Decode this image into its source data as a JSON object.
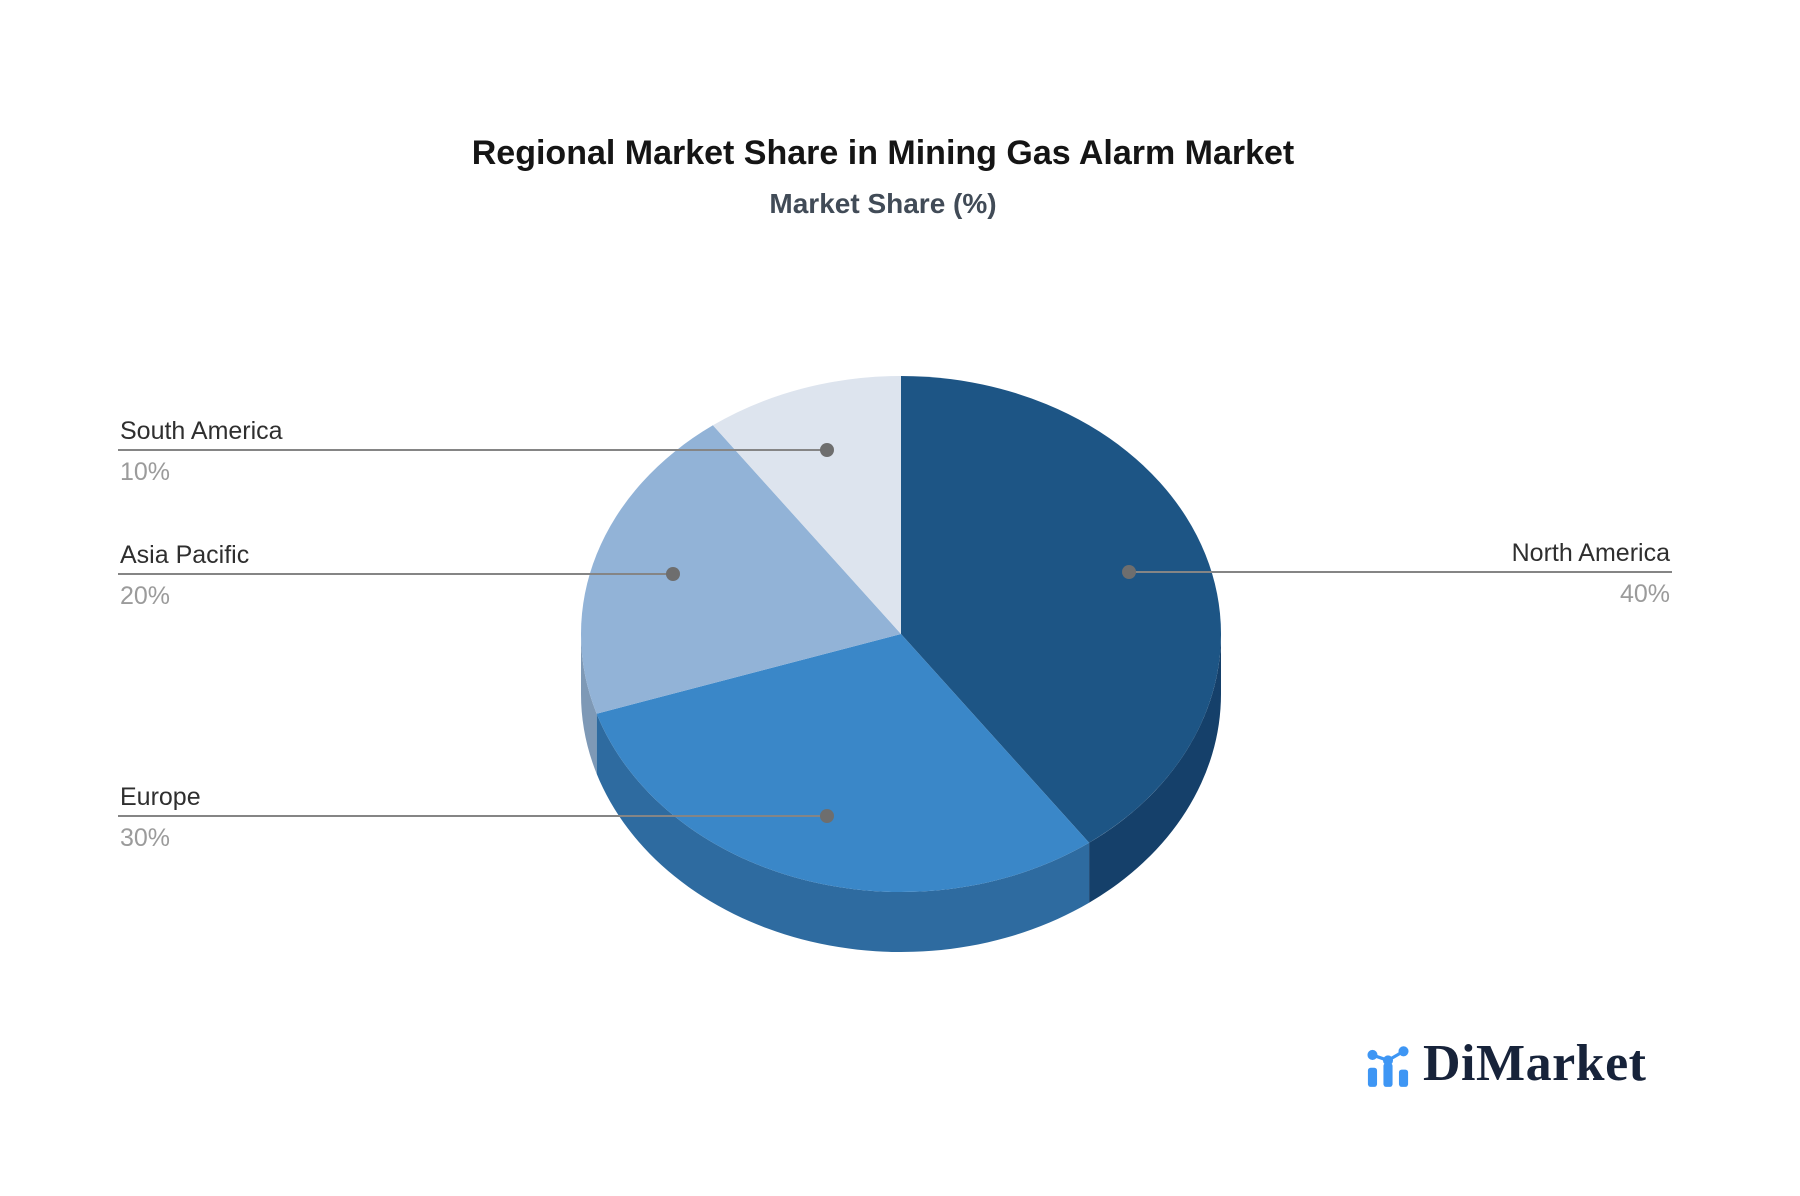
{
  "chart_data": {
    "type": "pie",
    "style": "3d",
    "title": "Regional Market Share in Mining Gas Alarm Market",
    "subtitle": "Market Share (%)",
    "unit": "%",
    "direction": "clockwise",
    "start_angle_deg": 0,
    "labels": [
      "North America",
      "Europe",
      "Asia Pacific",
      "South America"
    ],
    "values": [
      40,
      30,
      20,
      10
    ],
    "value_labels": [
      "40%",
      "30%",
      "20%",
      "10%"
    ],
    "colors": [
      "#1d5585",
      "#3a87c8",
      "#92b3d7",
      "#dde4ee"
    ],
    "side_colors": [
      "#15406a",
      "#2e6ba0",
      "#7e99b6",
      "#c3cfdf"
    ],
    "label_line_color": "#858585",
    "label_text_color": "#2f2f2f",
    "value_text_color": "#9b9b9b",
    "legend_position": "callout-labels"
  },
  "logo": {
    "text": "DiMarket",
    "icon": "bar-chart-trend-icon",
    "icon_color": "#3e96f4",
    "text_color": "#17233a"
  }
}
